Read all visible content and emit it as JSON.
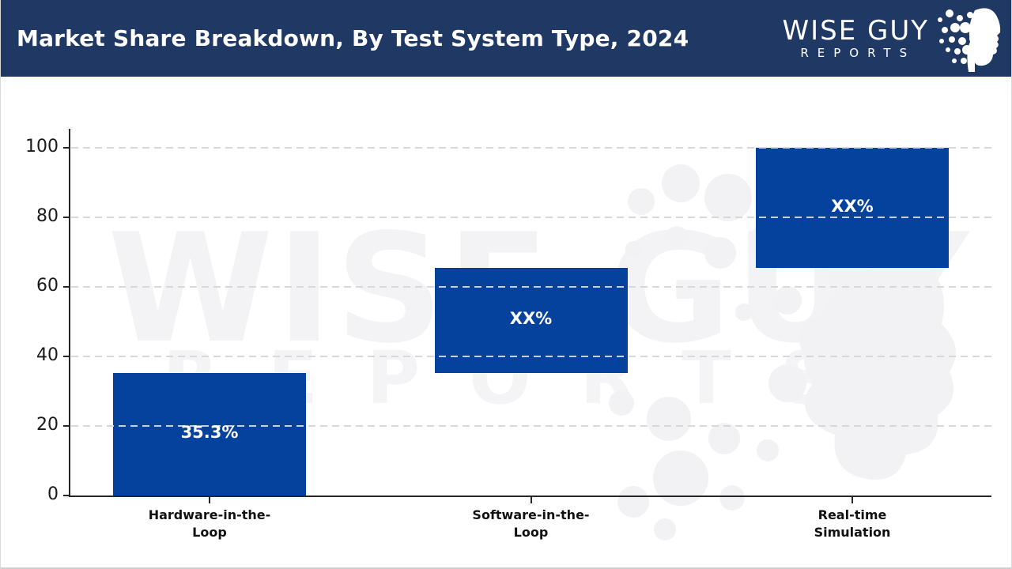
{
  "header": {
    "title": "Market Share Breakdown, By Test System Type, 2024",
    "background_color": "#1f3864",
    "logo": {
      "line1": "WISE GUY",
      "line2": "REPORTS",
      "icon": "dotted-head-profile"
    }
  },
  "watermark": {
    "line1": "WISE GUY",
    "line2": "REPORTS"
  },
  "chart_data": {
    "type": "bar",
    "subtype": "waterfall",
    "title": "Market Share Breakdown, By Test System Type, 2024",
    "categories": [
      "Hardware-in-the-Loop",
      "Software-in-the-Loop",
      "Real-time Simulation"
    ],
    "category_labels": [
      "Hardware-in-the-\nLoop",
      "Software-in-the-\nLoop",
      "Real-time\nSimulation"
    ],
    "bars": [
      {
        "category": "Hardware-in-the-Loop",
        "start": 0,
        "end": 35.3,
        "label": "35.3%"
      },
      {
        "category": "Software-in-the-Loop",
        "start": 35.3,
        "end": 65.5,
        "label": "XX%"
      },
      {
        "category": "Real-time Simulation",
        "start": 65.5,
        "end": 100,
        "label": "XX%"
      }
    ],
    "yticks": [
      0,
      20,
      40,
      60,
      80,
      100
    ],
    "ylim": [
      0,
      100
    ],
    "xlabel": "",
    "ylabel": "",
    "bar_color": "#05429d",
    "grid": "horizontal-dashed",
    "gridline_color": "#d6d6d6",
    "legend": "none"
  }
}
